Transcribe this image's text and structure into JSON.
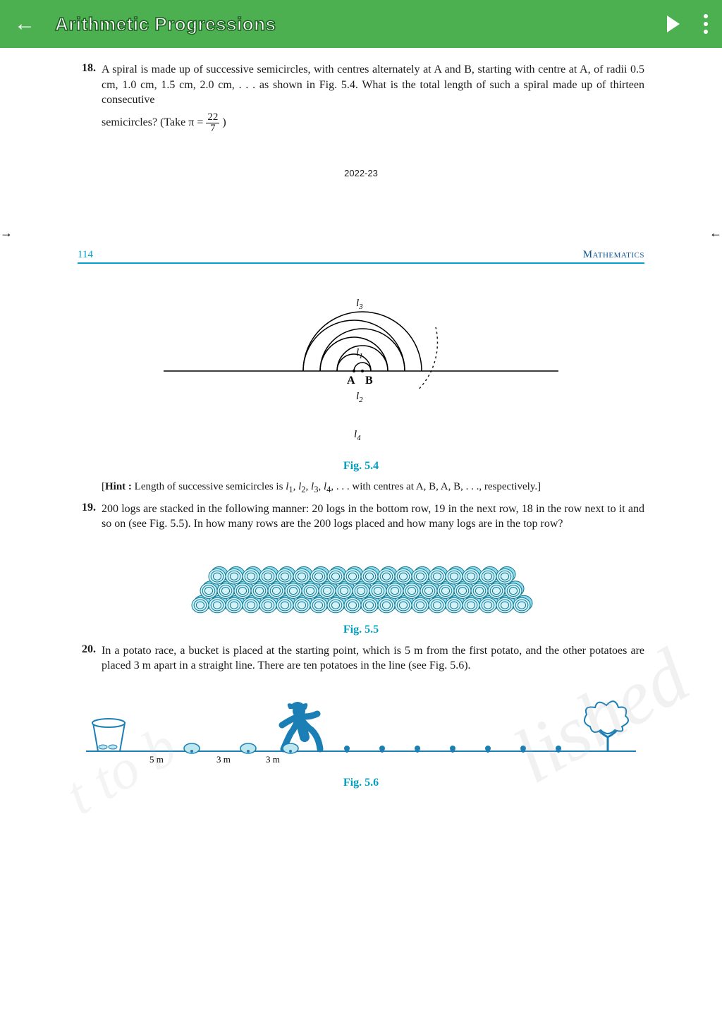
{
  "header": {
    "title": "Arithmetic Progressions"
  },
  "q18": {
    "num": "18.",
    "text_a": "A spiral is made up of successive semicircles, with centres alternately at A and B, starting with centre at A, of radii 0.5 cm, 1.0 cm, 1.5 cm, 2.0 cm, . . . as shown in Fig. 5.4. What is the total length of such a spiral made up of thirteen consecutive",
    "text_b": "semicircles? (Take π = ",
    "frac_top": "22",
    "frac_bot": "7",
    "text_c": " )"
  },
  "year": "2022-23",
  "page_line": {
    "num": "114",
    "subject": "Mathematics"
  },
  "fig54": {
    "caption": "Fig. 5.4",
    "labels": {
      "l1": "l",
      "l1s": "1",
      "l2": "l",
      "l2s": "2",
      "l3": "l",
      "l3s": "3",
      "l4": "l",
      "l4s": "4",
      "A": "A",
      "B": "B"
    }
  },
  "hint": {
    "open": "[",
    "bold": "Hint :",
    "rest": " Length of successive semicircles is ",
    "l": "l",
    "s1": "1",
    "s2": "2",
    "s3": "3",
    "s4": "4",
    "tail": ", . . . with centres at A, B, A, B, . . ., respectively.]"
  },
  "q19": {
    "num": "19.",
    "text": "200 logs are stacked in the following manner: 20 logs in the bottom row, 19 in the next row, 18 in the row next to it and so on (see Fig. 5.5). In how many rows are the 200 logs placed and how many logs are in the top row?"
  },
  "fig55": {
    "caption": "Fig. 5.5"
  },
  "q20": {
    "num": "20.",
    "text": "In a potato race, a bucket is placed at the starting point, which is 5 m from the first potato, and the other potatoes are placed 3 m apart in a straight line. There are ten potatoes in the line (see Fig. 5.6)."
  },
  "fig56": {
    "caption": "Fig. 5.6",
    "d1": "5 m",
    "d2": "3 m",
    "d3": "3 m"
  },
  "colors": {
    "green": "#4caf50",
    "teal": "#00a5cf",
    "blue": "#8fd9e8",
    "ink": "#1a1a1a"
  }
}
